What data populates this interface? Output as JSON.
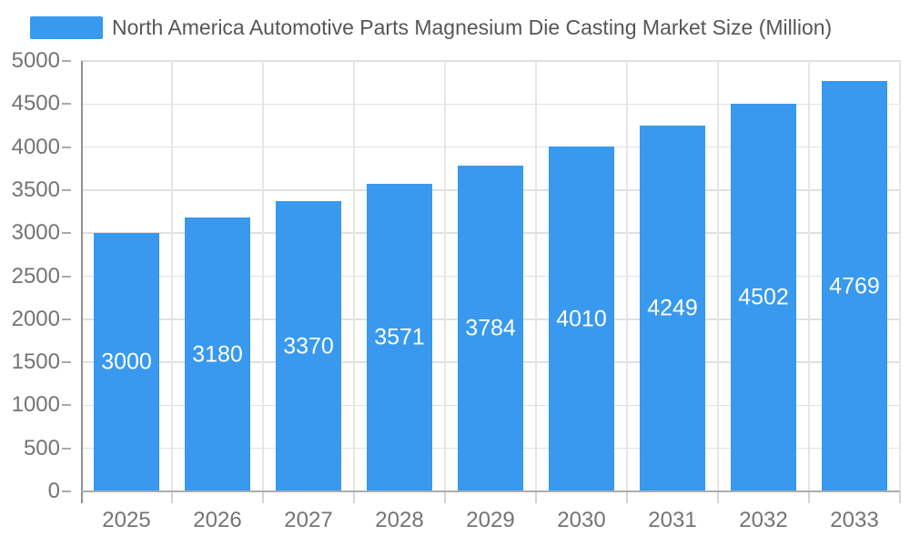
{
  "chart_data": {
    "type": "bar",
    "title": "North America Automotive Parts Magnesium Die Casting Market Size (Million)",
    "categories": [
      "2025",
      "2026",
      "2027",
      "2028",
      "2029",
      "2030",
      "2031",
      "2032",
      "2033"
    ],
    "values": [
      3000,
      3180,
      3370,
      3571,
      3784,
      4010,
      4249,
      4502,
      4769
    ],
    "xlabel": "",
    "ylabel": "",
    "ylim": [
      0,
      5000
    ],
    "ytick_step": 500,
    "grid": true,
    "legend_position": "top-left",
    "bar_label_position": "inside-center",
    "colors": {
      "bar": "#3899EE",
      "bar_value_label": "#FFFFFF",
      "legend_text": "#565656",
      "axis_text": "#747474",
      "y_axis_line": "#909090",
      "x_axis_line": "#ACACAC",
      "gridline_h": "#E0E0E0",
      "gridline_v": "#E6E6E6",
      "y_tick": "#A9A9A9",
      "x_tick": "#D4D4D4"
    }
  }
}
